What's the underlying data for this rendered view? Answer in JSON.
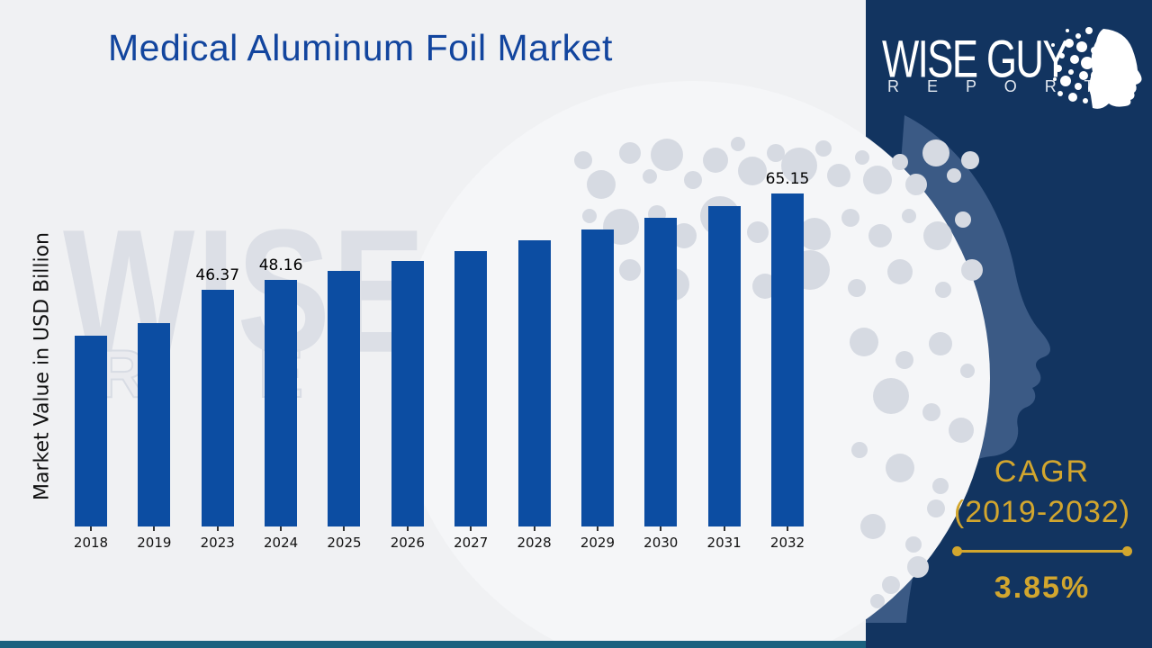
{
  "page": {
    "background": "#f0f1f3"
  },
  "title": {
    "text": "Medical Aluminum Foil Market",
    "color": "#12459e"
  },
  "watermark": {
    "line1": "WISE GUY",
    "line2": "R E P O R T S"
  },
  "brand_panel": {
    "background": "#123460",
    "logo_line1": "WISE GUY",
    "logo_line2": "R E P O R T S",
    "logo_face_icon": "dotted-face-profile-icon",
    "cagr_label": "CAGR",
    "cagr_range": "(2019-2032)",
    "cagr_value": "3.85%",
    "accent_gold": "#d2a62e"
  },
  "chart_data": {
    "type": "bar",
    "title": "Medical Aluminum Foil Market",
    "xlabel": "",
    "ylabel": "Market Value in USD Billion",
    "categories": [
      "2018",
      "2019",
      "2023",
      "2024",
      "2025",
      "2026",
      "2027",
      "2028",
      "2029",
      "2030",
      "2031",
      "2032"
    ],
    "values": [
      37.3,
      39.85,
      46.37,
      48.16,
      50.01,
      51.94,
      53.94,
      56.02,
      58.17,
      60.41,
      62.74,
      65.15
    ],
    "bar_labels": [
      "",
      "",
      "46.37",
      "48.16",
      "",
      "",
      "",
      "",
      "",
      "",
      "",
      "65.15"
    ],
    "ylim": [
      0,
      74.8
    ],
    "bar_color": "#0c4da2",
    "grid": false,
    "legend": null,
    "units": "USD Billion"
  },
  "footer": {
    "stripe_color": "#1a617f"
  }
}
